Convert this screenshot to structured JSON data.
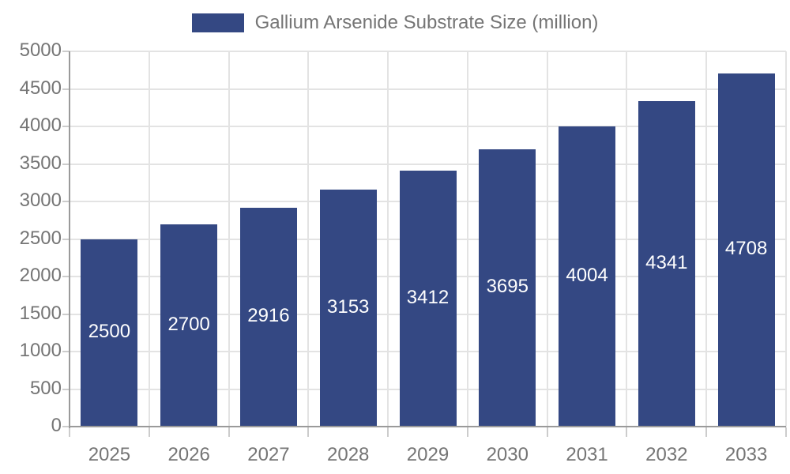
{
  "legend": {
    "label": "Gallium Arsenide Substrate Size (million)"
  },
  "colors": {
    "bar": "#344883",
    "text_muted": "#757575",
    "axis_line": "#9a9a9a",
    "tick": "#cccccc",
    "grid": "#e3e3e3",
    "value_label": "#ffffff",
    "background": "#ffffff"
  },
  "chart_data": {
    "type": "bar",
    "title": "Gallium Arsenide Substrate Size (million)",
    "categories": [
      "2025",
      "2026",
      "2027",
      "2028",
      "2029",
      "2030",
      "2031",
      "2032",
      "2033"
    ],
    "series": [
      {
        "name": "Gallium Arsenide Substrate Size (million)",
        "values": [
          2500,
          2700,
          2916,
          3153,
          3412,
          3695,
          4004,
          4341,
          4708
        ]
      }
    ],
    "xlabel": "",
    "ylabel": "",
    "ylim": [
      0,
      5000
    ],
    "ytick_labels": [
      "0",
      "500",
      "1000",
      "1500",
      "2000",
      "2500",
      "3000",
      "3500",
      "4000",
      "4500",
      "5000"
    ],
    "grid": true,
    "legend_position": "top-center",
    "value_label_position": "inside-center"
  }
}
